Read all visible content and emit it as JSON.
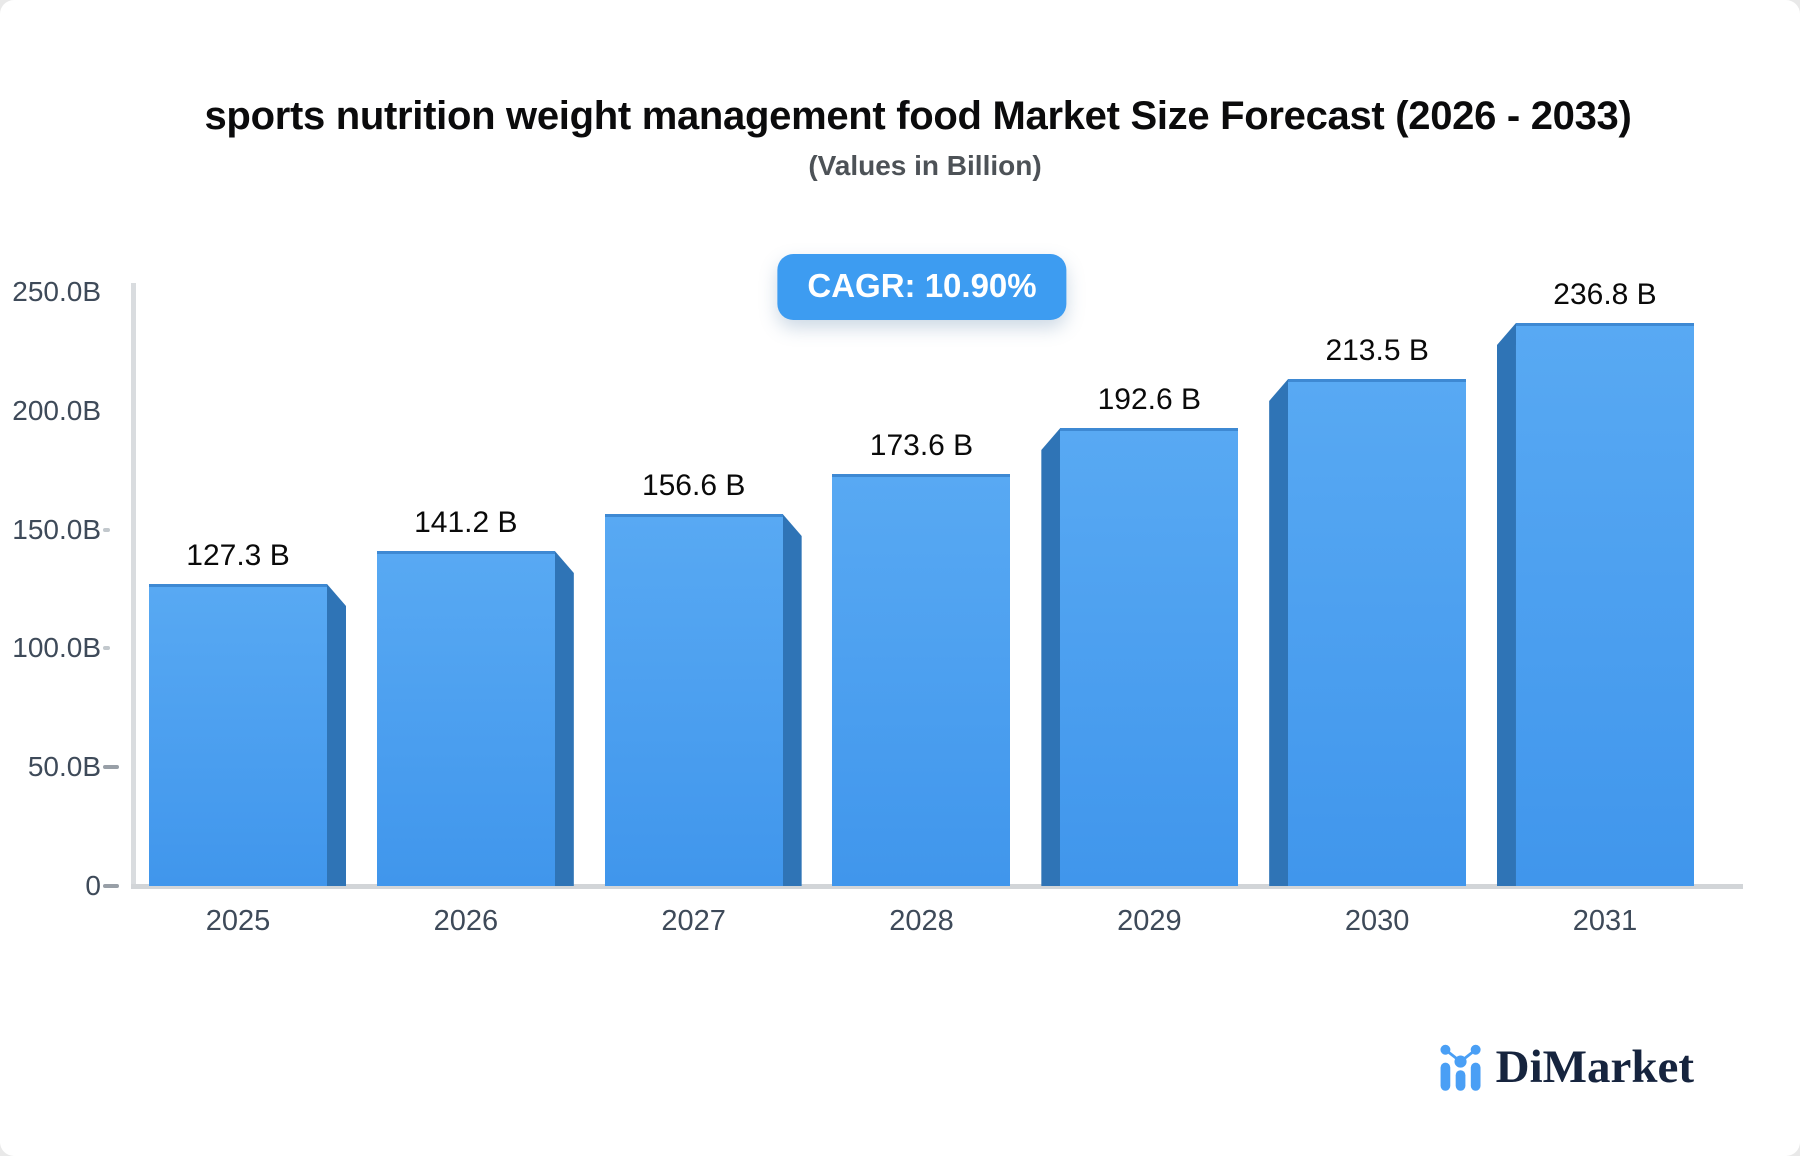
{
  "header": {
    "title": "sports nutrition weight management food Market Size Forecast (2026 - 2033)",
    "subtitle": "(Values in Billion)"
  },
  "cagr_badge": {
    "label": "CAGR: 10.90%",
    "bg_color": "#3d9cf1",
    "text_color": "#ffffff"
  },
  "chart_data": {
    "type": "bar",
    "title": "sports nutrition weight management food Market Size Forecast (2026 - 2033)",
    "subtitle": "(Values in Billion)",
    "categories": [
      "2025",
      "2026",
      "2027",
      "2028",
      "2029",
      "2030",
      "2031"
    ],
    "values": [
      127.3,
      141.2,
      156.6,
      173.6,
      192.6,
      213.5,
      236.8
    ],
    "value_labels": [
      "127.3 B",
      "141.2 B",
      "156.6 B",
      "173.6 B",
      "192.6 B",
      "213.5 B",
      "236.8 B"
    ],
    "unit": "Billion",
    "ylim": [
      0,
      250
    ],
    "y_ticks": [
      {
        "value": 0,
        "label": "0"
      },
      {
        "value": 50,
        "label": "50.0B"
      },
      {
        "value": 100,
        "label": "100.0B"
      },
      {
        "value": 150,
        "label": "150.0B"
      },
      {
        "value": 200,
        "label": "200.0B"
      },
      {
        "value": 250,
        "label": "250.0B"
      }
    ],
    "grid": false,
    "legend": false,
    "style": "3d-bars",
    "bar_face_color_top": "#58a9f3",
    "bar_face_color_bottom": "#4096ec",
    "bar_side_color": "#2f74b6",
    "bar_top_edge_color": "#3e89d3",
    "axis_color": "#d2d5d8",
    "label_color": "#3e4a59"
  },
  "logo": {
    "text": "DiMarket",
    "icon": "mini-bar-chart-icon",
    "icon_color": "#4a9ff5",
    "text_color": "#16243e"
  }
}
